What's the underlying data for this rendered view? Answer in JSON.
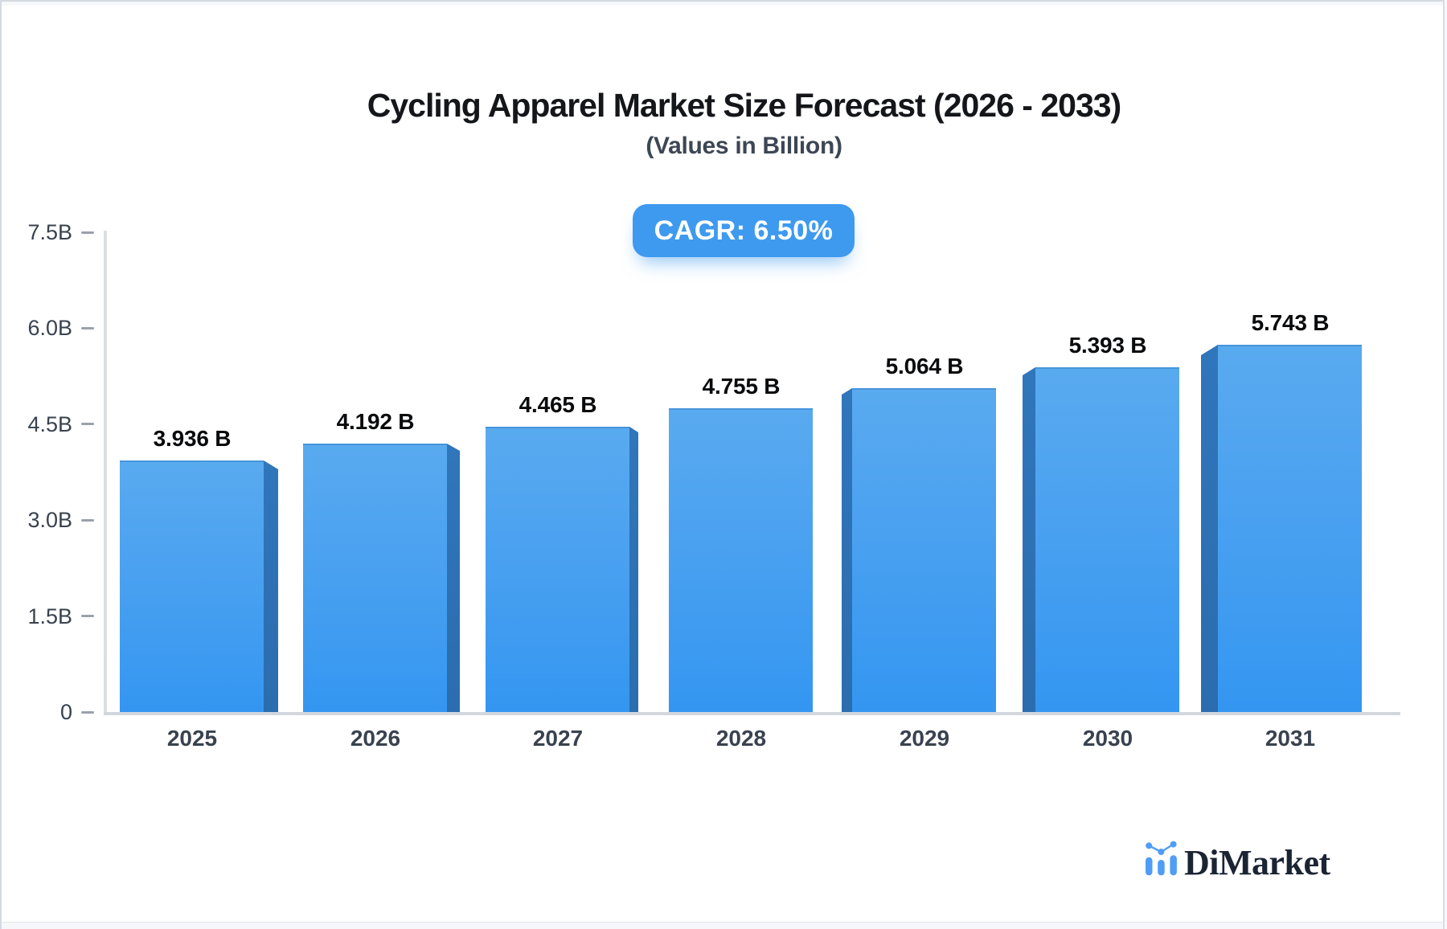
{
  "header": {
    "title": "Cycling Apparel Market Size Forecast (2026 - 2033)",
    "subtitle": "(Values in Billion)",
    "cagr_badge": "CAGR: 6.50%"
  },
  "branding": {
    "logo_text": "DiMarket",
    "logo_icon": "bar-chart-logo-icon",
    "logo_text_color": "#1B2433",
    "logo_icon_color": "#4F9DF6"
  },
  "chart_data": {
    "type": "bar",
    "title": "Cycling Apparel Market Size Forecast (2026 - 2033)",
    "subtitle": "(Values in Billion)",
    "cagr": "6.50%",
    "unit": "Billion",
    "categories": [
      "2025",
      "2026",
      "2027",
      "2028",
      "2029",
      "2030",
      "2031"
    ],
    "values": [
      3.936,
      4.192,
      4.465,
      4.755,
      5.064,
      5.393,
      5.743
    ],
    "value_labels": [
      "3.936 B",
      "4.192 B",
      "4.465 B",
      "4.755 B",
      "5.064 B",
      "5.393 B",
      "5.743 B"
    ],
    "yticks": [
      {
        "value": 0,
        "label": "0"
      },
      {
        "value": 1.5,
        "label": "1.5B"
      },
      {
        "value": 3.0,
        "label": "3.0B"
      },
      {
        "value": 4.5,
        "label": "4.5B"
      },
      {
        "value": 6.0,
        "label": "6.0B"
      },
      {
        "value": 7.5,
        "label": "7.5B"
      }
    ],
    "ylim": [
      0,
      7.5
    ],
    "xlabel": "",
    "ylabel": "",
    "grid": false,
    "legend": false,
    "bar_style": "3d-perspective",
    "colors": {
      "bar_face_top": "#59AAEF",
      "bar_face_bottom": "#3496F1",
      "bar_side_top": "#3076BB",
      "bar_side_bottom": "#2B6DAE",
      "badge_bg": "#3E9AEF",
      "axis_line": "#DBDEE3",
      "baseline": "#D3D7DD",
      "tick_dash": "#9AA1AB",
      "tick_label": "#39424F",
      "value_label": "#0A0B0D",
      "category_label": "#39424F"
    }
  }
}
